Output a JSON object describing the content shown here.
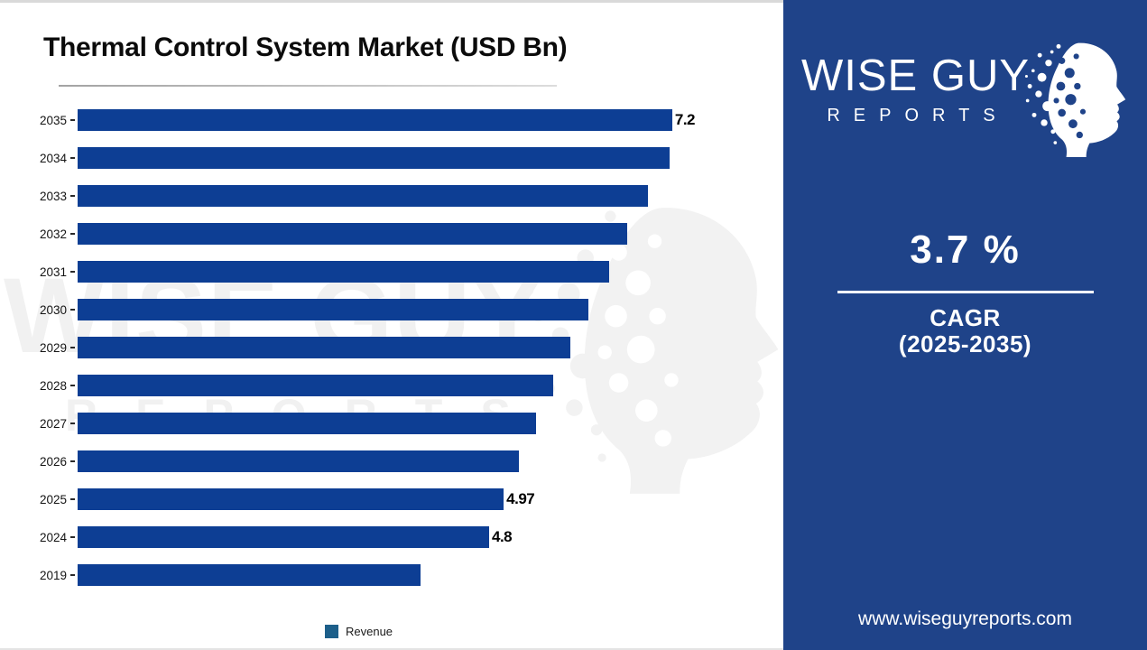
{
  "chart_data": {
    "type": "bar",
    "orientation": "horizontal",
    "title": "Thermal Control System Market (USD Bn)",
    "categories": [
      "2035",
      "2034",
      "2033",
      "2032",
      "2031",
      "2030",
      "2029",
      "2028",
      "2027",
      "2026",
      "2025",
      "2024",
      "2019"
    ],
    "values": [
      7.2,
      6.9,
      6.65,
      6.41,
      6.2,
      5.96,
      5.75,
      5.55,
      5.35,
      5.15,
      4.97,
      4.8,
      4.0
    ],
    "value_labels": {
      "2035": "7.2",
      "2025": "4.97",
      "2024": "4.8"
    },
    "xlim": [
      0,
      7.2
    ],
    "grid": false,
    "bar_color": "#0d3e94",
    "legend_position": "bottom",
    "legend": [
      {
        "label": "Revenue",
        "color": "#1d5f8a"
      }
    ]
  },
  "sidebar": {
    "background": "#1f4389",
    "logo": {
      "line1": "WISE GUY",
      "line2": "REPORTS"
    },
    "cagr_value": "3.7 %",
    "cagr_label_line1": "CAGR",
    "cagr_label_line2": "(2025-2035)",
    "website": "www.wiseguyreports.com"
  },
  "watermark": {
    "line1": "WISE GUY",
    "line2": "REPORTS"
  }
}
